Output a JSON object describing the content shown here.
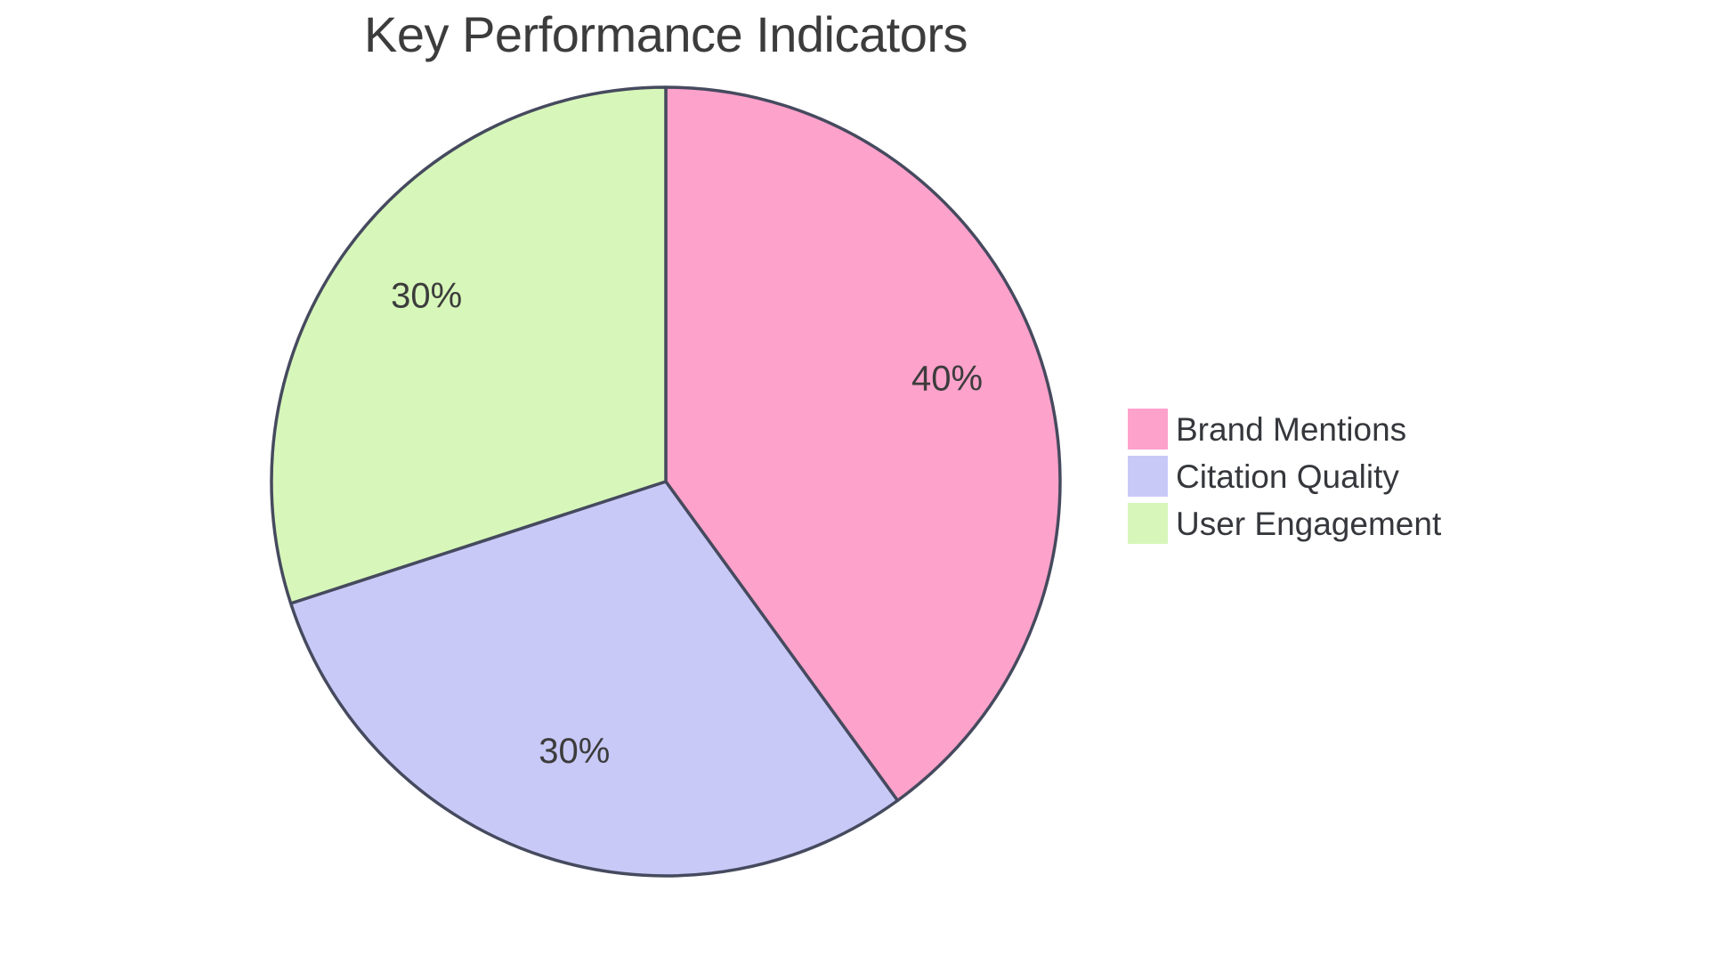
{
  "chart_data": {
    "type": "pie",
    "title": "Key Performance Indicators",
    "slices": [
      {
        "label": "Brand Mentions",
        "value": 40,
        "pct_label": "40%",
        "color": "#FDA2CB"
      },
      {
        "label": "Citation Quality",
        "value": 30,
        "pct_label": "30%",
        "color": "#C9C9F8"
      },
      {
        "label": "User Engagement",
        "value": 30,
        "pct_label": "30%",
        "color": "#D7F7BA"
      }
    ],
    "start_angle": "12-oclock",
    "direction": "clockwise",
    "stroke_color": "#464A5E",
    "label_color": "#3C3C3C",
    "legend_position": "right",
    "background": "#FFFFFF"
  }
}
